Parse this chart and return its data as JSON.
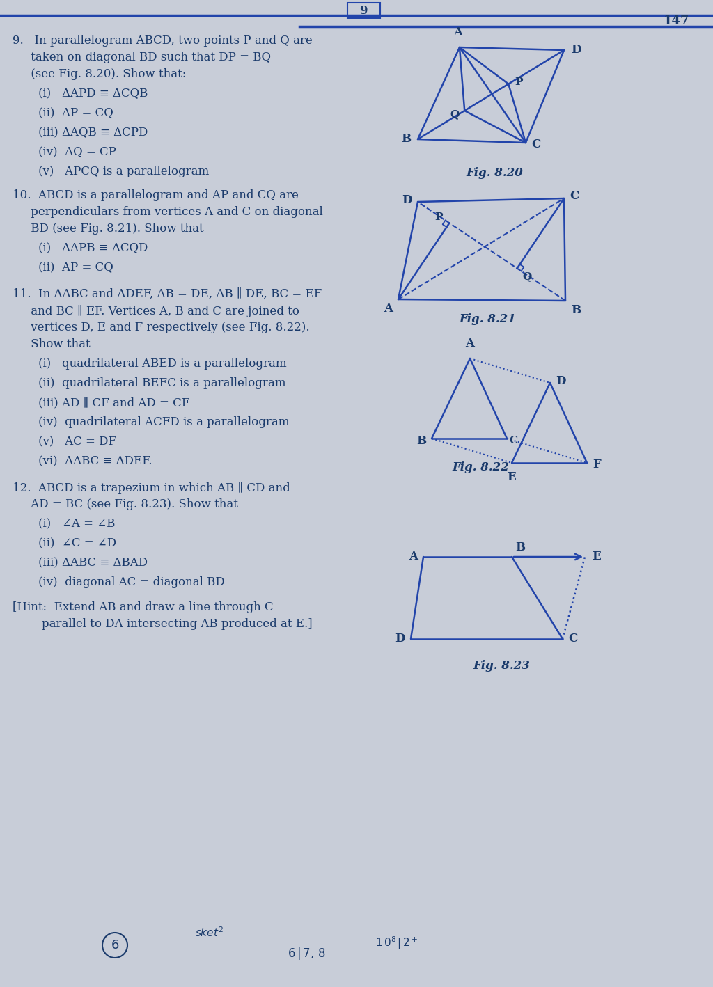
{
  "background_color": "#c8cdd8",
  "text_color": "#1a3a6b",
  "line_color": "#2244aa",
  "q9_text_lines": [
    "9.   In parallelogram ABCD, two points P and Q are",
    "     taken on diagonal BD such that DP = BQ",
    "     (see Fig. 8.20). Show that:"
  ],
  "q9_items": [
    "(i)   ΔAPD ≡ ΔCQB",
    "(ii)  AP = CQ",
    "(iii) ΔAQB ≡ ΔCPD",
    "(iv)  AQ = CP",
    "(v)   APCQ is a parallelogram"
  ],
  "q10_text_lines": [
    "10.  ABCD is a parallelogram and AP and CQ are",
    "     perpendiculars from vertices A and C on diagonal",
    "     BD (see Fig. 8.21). Show that"
  ],
  "q10_items": [
    "(i)   ΔAPB ≡ ΔCQD",
    "(ii)  AP = CQ"
  ],
  "q11_text_lines": [
    "11.  In ΔABC and ΔDEF, AB = DE, AB ∥ DE, BC = EF",
    "     and BC ∥ EF. Vertices A, B and C are joined to",
    "     vertices D, E and F respectively (see Fig. 8.22).",
    "     Show that"
  ],
  "q11_items": [
    "(i)   quadrilateral ABED is a parallelogram",
    "(ii)  quadrilateral BEFC is a parallelogram",
    "(iii) AD ∥ CF and AD = CF",
    "(iv)  quadrilateral ACFD is a parallelogram",
    "(v)   AC = DF",
    "(vi)  ΔABC ≡ ΔDEF."
  ],
  "q12_text_lines": [
    "12.  ABCD is a trapezium in which AB ∥ CD and",
    "     AD = BC (see Fig. 8.23). Show that"
  ],
  "q12_items": [
    "(i)   ∠A = ∠B",
    "(ii)  ∠C = ∠D",
    "(iii) ΔABC ≡ ΔBAD",
    "(iv)  diagonal AC = diagonal BD"
  ],
  "q12_hint_lines": [
    "[Hint:  Extend AB and draw a line through C",
    "        parallel to DA intersecting AB produced at E.]"
  ]
}
